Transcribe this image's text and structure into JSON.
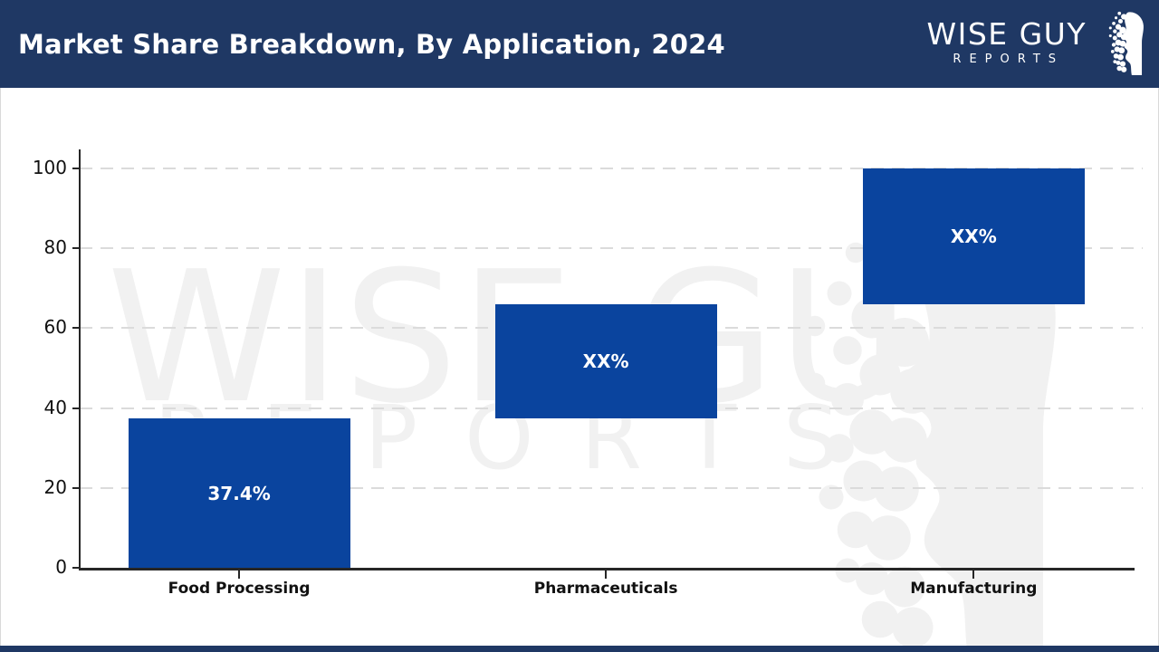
{
  "header": {
    "title": "Market Share Breakdown, By Application, 2024",
    "logo": {
      "brand": "WISE GUY",
      "sub": "REPORTS"
    }
  },
  "watermark": {
    "brand": "WISE GUY",
    "sub": "REPORTS"
  },
  "colors": {
    "header_bg": "#1F3864",
    "bar": "#0A449E",
    "bar_label": "#FFFFFF",
    "grid": "#DBDBDB",
    "axis": "#262626",
    "tick_label": "#111111",
    "watermark": "#F1F1F1"
  },
  "chart_data": {
    "type": "bar",
    "subtype": "waterfall",
    "title": "Market Share Breakdown, By Application, 2024",
    "categories": [
      "Food Processing",
      "Pharmaceuticals",
      "Manufacturing"
    ],
    "bars": [
      {
        "category": "Food Processing",
        "start": 0,
        "end": 37.4,
        "label": "37.4%"
      },
      {
        "category": "Pharmaceuticals",
        "start": 37.4,
        "end": 66,
        "label": "XX%"
      },
      {
        "category": "Manufacturing",
        "start": 66,
        "end": 100,
        "label": "XX%"
      }
    ],
    "xlabel": "",
    "ylabel": "",
    "ylim": [
      0,
      100
    ],
    "yticks": [
      0,
      20,
      40,
      60,
      80,
      100
    ],
    "grid": "horizontal-dashed",
    "legend": "none"
  }
}
